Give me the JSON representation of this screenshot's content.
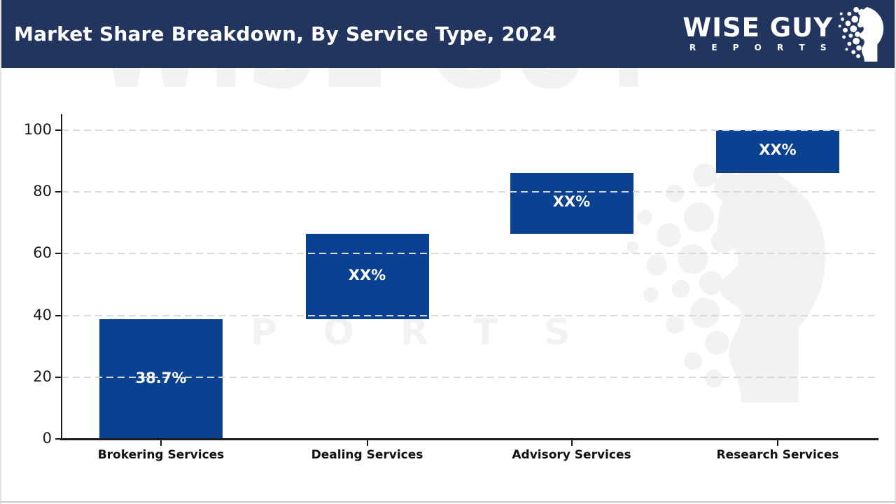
{
  "header": {
    "title": "Market Share Breakdown, By Service Type, 2024",
    "logo": {
      "wordmark": "WISE GUY",
      "subtext": "R E P O R T S"
    }
  },
  "watermark": {
    "line1": "WISE GUY",
    "line2": "REPORTS"
  },
  "chart_data": {
    "type": "bar",
    "subtype": "waterfall",
    "title": "Market Share Breakdown, By Service Type, 2024",
    "categories": [
      "Brokering Services",
      "Dealing Services",
      "Advisory Services",
      "Research Services"
    ],
    "segments": [
      {
        "category": "Brokering Services",
        "start": 0,
        "end": 38.7,
        "value_label": "38.7%"
      },
      {
        "category": "Dealing Services",
        "start": 38.7,
        "end": 66.5,
        "value_label": "XX%"
      },
      {
        "category": "Advisory Services",
        "start": 66.5,
        "end": 86.2,
        "value_label": "XX%"
      },
      {
        "category": "Research Services",
        "start": 86.2,
        "end": 100,
        "value_label": "XX%"
      }
    ],
    "ylim": [
      0,
      100
    ],
    "yticks": [
      0,
      20,
      40,
      60,
      80,
      100
    ],
    "xlabel": "",
    "ylabel": "",
    "grid": "horizontal dashed, drawn above bars",
    "legend": false
  },
  "colors": {
    "header_bg": "#22355e",
    "bar": "#0b4191",
    "value_label": "#ffffff",
    "axis": "#1a1a1a",
    "grid": "#d9d9d9",
    "watermark": "#f2f2f2"
  }
}
